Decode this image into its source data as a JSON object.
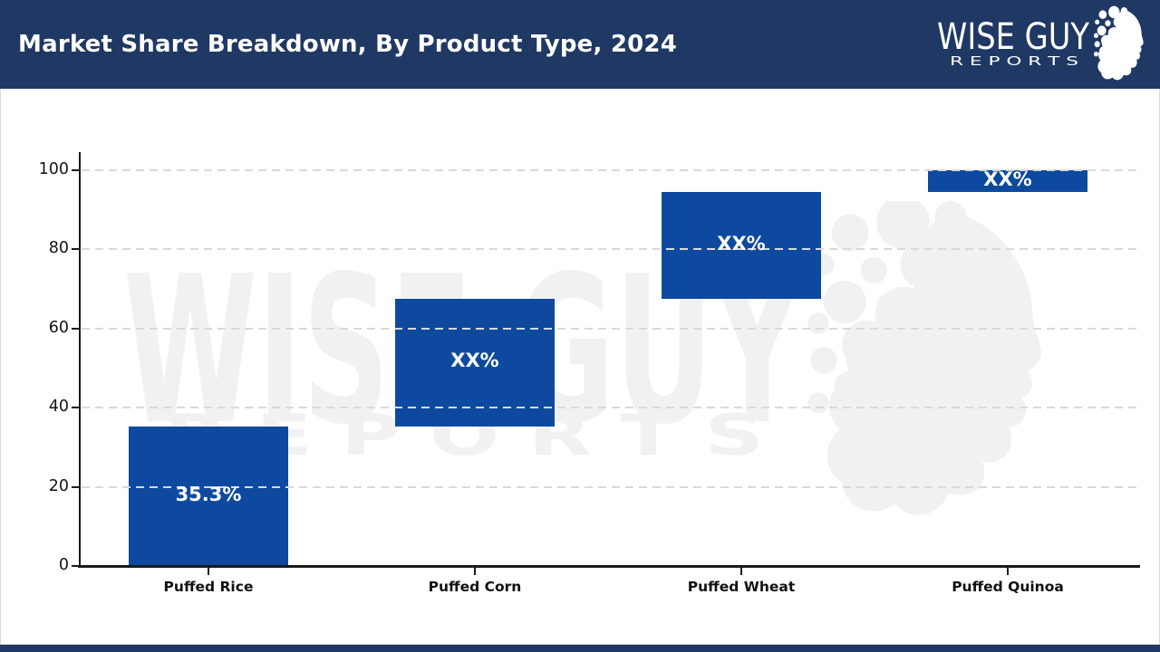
{
  "header": {
    "title": "Market Share Breakdown, By Product Type, 2024",
    "logo_line1": "WISE GUY",
    "logo_line2": "R E P O R T S"
  },
  "watermark": {
    "line1": "WISE GUY",
    "line2": "R E P O R T S"
  },
  "colors": {
    "header_bg": "#1f3864",
    "bar": "#0d4a9f",
    "gridline": "#d9d9d9",
    "watermark": "#f1f1f4"
  },
  "chart_data": {
    "type": "bar",
    "subtype": "waterfall",
    "title": "Market Share Breakdown, By Product Type, 2024",
    "categories": [
      "Puffed Rice",
      "Puffed Corn",
      "Puffed Wheat",
      "Puffed Quinoa"
    ],
    "series": [
      {
        "name": "Market share (%)",
        "segments": [
          {
            "category": "Puffed Rice",
            "start": 0,
            "end": 35.3,
            "label": "35.3%"
          },
          {
            "category": "Puffed Corn",
            "start": 35.3,
            "end": 67.5,
            "label": "XX%"
          },
          {
            "category": "Puffed Wheat",
            "start": 67.5,
            "end": 94.5,
            "label": "XX%"
          },
          {
            "category": "Puffed Quinoa",
            "start": 94.5,
            "end": 100,
            "label": "XX%"
          }
        ]
      }
    ],
    "ylim": [
      0,
      100
    ],
    "yticks": [
      0,
      20,
      40,
      60,
      80,
      100
    ],
    "grid": "horizontal-dashed",
    "legend": "none",
    "bar_color": "#0d4a9f",
    "bar_label_color": "#ffffff"
  }
}
